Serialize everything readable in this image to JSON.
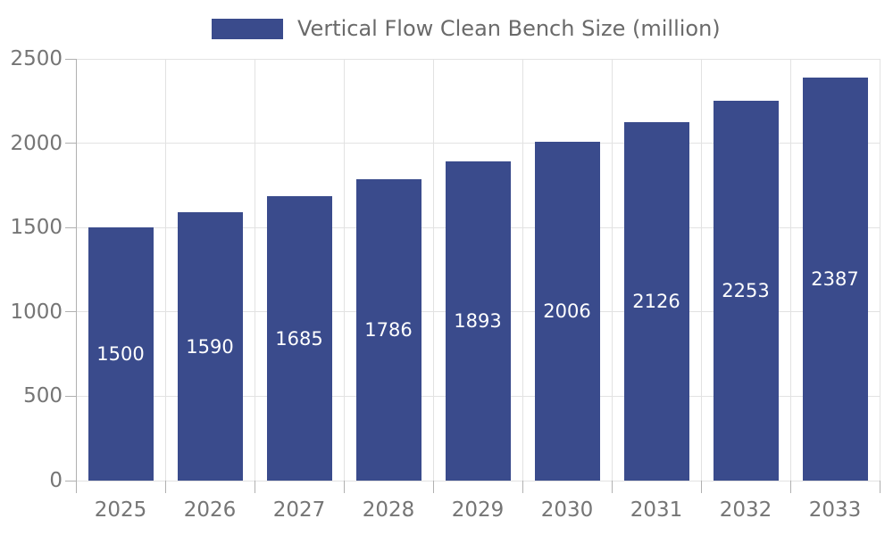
{
  "chart_data": {
    "type": "bar",
    "title": "Vertical Flow Clean Bench Size (million)",
    "categories": [
      "2025",
      "2026",
      "2027",
      "2028",
      "2029",
      "2030",
      "2031",
      "2032",
      "2033"
    ],
    "values": [
      1500,
      1590,
      1685,
      1786,
      1893,
      2006,
      2126,
      2253,
      2387
    ],
    "xlabel": "",
    "ylabel": "",
    "ylim": [
      0,
      2500
    ],
    "yticks": [
      0,
      500,
      1000,
      1500,
      2000,
      2500
    ],
    "grid": true,
    "legend_position": "top",
    "bar_labels_inside": true,
    "colors": {
      "bar": "#3A4B8C",
      "bar_value_text": "#ffffff",
      "gridline": "#e2e2e2",
      "axis": "#b0b0b0",
      "tick_label": "#757575",
      "legend_text": "#6a6a6a",
      "background": "#ffffff"
    }
  }
}
